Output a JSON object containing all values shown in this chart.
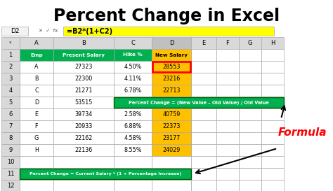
{
  "title": "Percent Change in Excel",
  "formula_bar_cell": "D2",
  "formula_bar_formula": "=B2*(1+C2)",
  "col_letters": [
    "",
    "A",
    "B",
    "C",
    "D",
    "E",
    "F",
    "G",
    "H"
  ],
  "header_row": [
    "Emp",
    "Present Salary",
    "Hike %",
    "New Salary"
  ],
  "data_rows": [
    [
      "A",
      "27323",
      "4.50%",
      "28553"
    ],
    [
      "B",
      "22300",
      "4.11%",
      "23216"
    ],
    [
      "C",
      "21271",
      "6.78%",
      "22713"
    ],
    [
      "D",
      "53515",
      "",
      ""
    ],
    [
      "E",
      "39734",
      "2.58%",
      "40759"
    ],
    [
      "F",
      "20933",
      "6.88%",
      "22373"
    ],
    [
      "G",
      "22162",
      "4.58%",
      "23177"
    ],
    [
      "H",
      "22136",
      "8.55%",
      "24029"
    ]
  ],
  "header_bg": "#00B050",
  "header_text": "#FFFFFF",
  "d_col_bg": "#FFC000",
  "d_col_text": "#000000",
  "d2_border_color": "#FF0000",
  "formula_bg": "#FFFF00",
  "note_box_bg": "#00B050",
  "note_box_text": "#FFFFFF",
  "note_text": "Percent Change = (New Value – Old Value) / Old Value",
  "note2_text": "Percent Change = Current Salary * (1 + Percentage Increase)",
  "formula_label_text": "Formula",
  "formula_label_color": "#FF0000",
  "bg_color": "#FFFFFF",
  "grid_color": "#AAAAAA",
  "col_hdr_bg": "#D9D9D9",
  "row_num_bg": "#D9D9D9",
  "title_color": "#000000",
  "title_fontsize": 17,
  "note_row": 5,
  "note2_row": 11,
  "num_rows": 12
}
